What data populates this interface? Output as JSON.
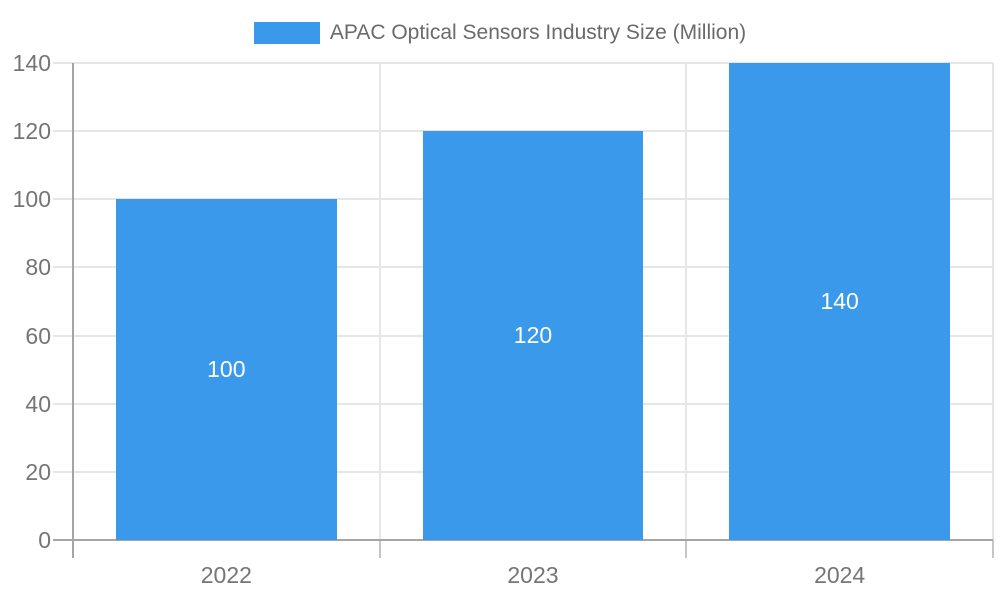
{
  "legend": {
    "label": "APAC Optical Sensors Industry Size (Million)"
  },
  "chart_data": {
    "type": "bar",
    "title": "APAC Optical Sensors Industry Size (Million)",
    "categories": [
      "2022",
      "2023",
      "2024"
    ],
    "series": [
      {
        "name": "APAC Optical Sensors Industry Size (Million)",
        "values": [
          100,
          120,
          140
        ]
      }
    ],
    "bar_labels": [
      "100",
      "120",
      "140"
    ],
    "xlabel": "",
    "ylabel": "",
    "ylim": [
      0,
      140
    ],
    "ytick_step": 20,
    "ytick_labels": [
      "0",
      "20",
      "40",
      "60",
      "80",
      "100",
      "120",
      "140"
    ],
    "grid": true,
    "legend_position": "top-center",
    "colors": {
      "bar": "#3B99EC",
      "gridline": "#E6E6E6",
      "axis": "#A5A5A5",
      "boundary_tick": "#C6C6C6",
      "tick_label_text": "#757575",
      "legend_text": "#6A6A6A",
      "bar_label_text": "#FFFFFF",
      "background": "#FFFFFF"
    }
  }
}
